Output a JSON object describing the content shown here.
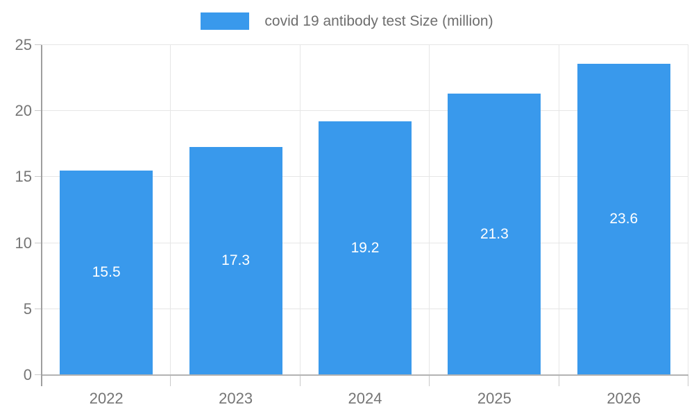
{
  "legend": {
    "label": "covid 19 antibody test Size (million)"
  },
  "colors": {
    "bar": "#3999ec",
    "grid": "#e6e6e6",
    "axis_y": "#9e9e9e",
    "axis_x": "#b3b3b3",
    "tick": "#c9c9c9",
    "tick_label": "#757575",
    "value_label": "#ffffff",
    "legend_text": "#6e6e6e",
    "background": "#ffffff"
  },
  "chart_data": {
    "type": "bar",
    "title": "",
    "categories": [
      "2022",
      "2023",
      "2024",
      "2025",
      "2026"
    ],
    "series": [
      {
        "name": "covid 19 antibody test Size (million)",
        "values": [
          15.5,
          17.3,
          19.2,
          21.3,
          23.6
        ]
      }
    ],
    "value_labels": [
      "15.5",
      "17.3",
      "19.2",
      "21.3",
      "23.6"
    ],
    "xlabel": "",
    "ylabel": "",
    "ylim": [
      0,
      25
    ],
    "yticks": [
      0,
      5,
      10,
      15,
      20,
      25
    ],
    "grid": true,
    "legend_position": "top",
    "bar_color": "#3999ec"
  }
}
